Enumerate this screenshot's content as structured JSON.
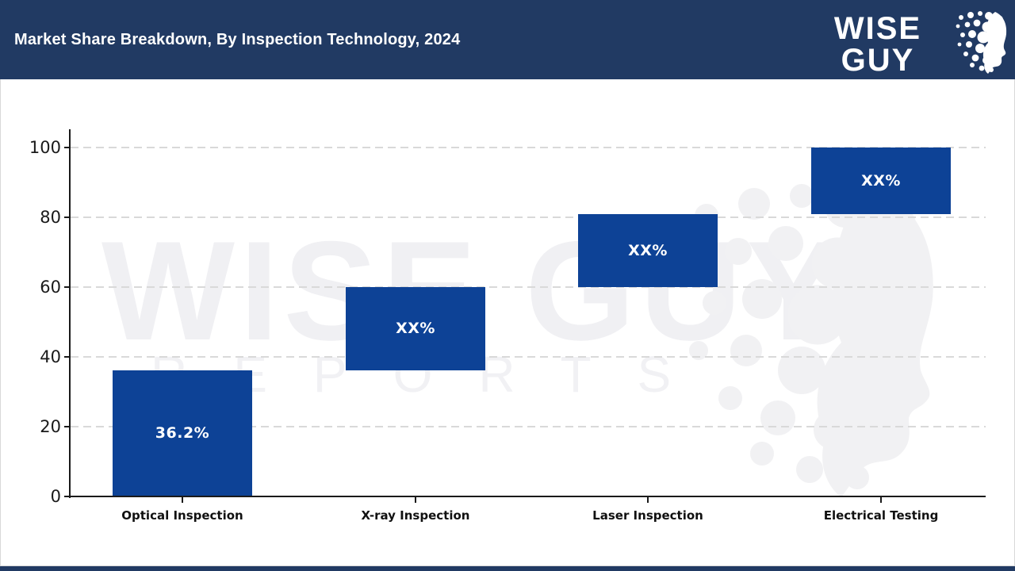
{
  "header": {
    "title": "Market Share Breakdown, By Inspection Technology, 2024",
    "logo": {
      "line1": "WISE GUY",
      "line2": "REPORTS"
    }
  },
  "watermark": {
    "line1": "WISE GUY",
    "line2": "REPORTS"
  },
  "chart_data": {
    "type": "bar",
    "variant": "floating-waterfall-breakdown",
    "title": "Market Share Breakdown, By Inspection Technology, 2024",
    "categories": [
      "Optical Inspection",
      "X-ray Inspection",
      "Laser Inspection",
      "Electrical Testing"
    ],
    "segments": [
      {
        "category": "Optical Inspection",
        "start": 0,
        "end": 36.2,
        "label": "36.2%"
      },
      {
        "category": "X-ray Inspection",
        "start": 36.2,
        "end": 60,
        "label": "XX%"
      },
      {
        "category": "Laser Inspection",
        "start": 60,
        "end": 81,
        "label": "XX%"
      },
      {
        "category": "Electrical Testing",
        "start": 81,
        "end": 100,
        "label": "XX%"
      }
    ],
    "yticks": [
      0,
      20,
      40,
      60,
      80,
      100
    ],
    "ylim": [
      0,
      105
    ],
    "xlabel": "",
    "ylabel": "",
    "grid": "horizontal-dashed",
    "legend": "none",
    "bar_color": "#0d4296",
    "bar_label_color": "#ffffff"
  },
  "colors": {
    "header_bg": "#213a63",
    "footer_bg": "#213a63",
    "bar": "#0d4296",
    "grid": "#d9d9d9",
    "axis": "#1a1a1a",
    "watermark": "#f0f0f3",
    "card_border": "#d8d8d8"
  }
}
